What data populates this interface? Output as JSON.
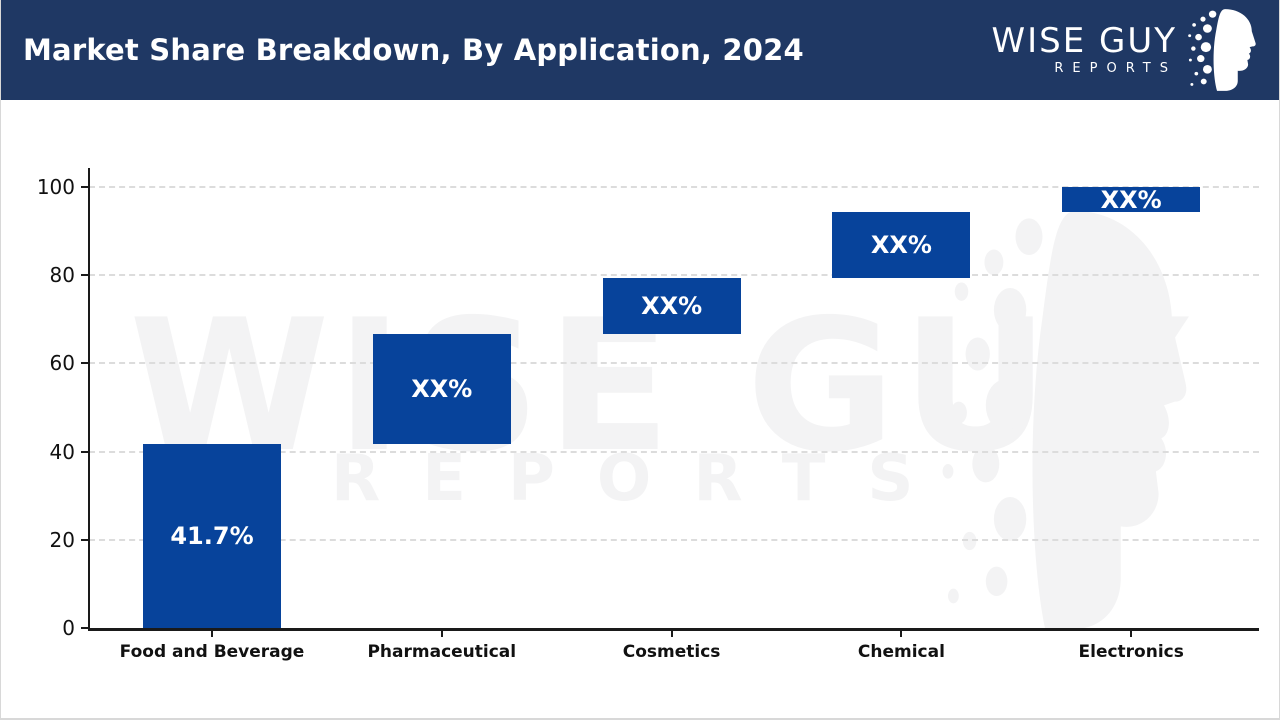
{
  "header": {
    "title": "Market Share Breakdown, By Application, 2024",
    "logo": {
      "line1": "WISE GUY",
      "line2": "REPORTS"
    }
  },
  "watermark": {
    "line1": "WISE GUY",
    "line2": "REPORTS"
  },
  "chart_data": {
    "type": "bar",
    "subtype": "waterfall",
    "title": "Market Share Breakdown, By Application, 2024",
    "categories": [
      "Food and Beverage",
      "Pharmaceutical",
      "Cosmetics",
      "Chemical",
      "Electronics"
    ],
    "bars": [
      {
        "category": "Food and Beverage",
        "start": 0,
        "end": 41.7,
        "size_pct": 41.7,
        "label": "41.7%"
      },
      {
        "category": "Pharmaceutical",
        "start": 41.7,
        "end": 66.7,
        "size_pct": 25.0,
        "label": "XX%"
      },
      {
        "category": "Cosmetics",
        "start": 66.7,
        "end": 79.3,
        "size_pct": 12.6,
        "label": "XX%"
      },
      {
        "category": "Chemical",
        "start": 79.3,
        "end": 94.3,
        "size_pct": 15.0,
        "label": "XX%"
      },
      {
        "category": "Electronics",
        "start": 94.3,
        "end": 100,
        "size_pct": 5.7,
        "label": "XX%"
      }
    ],
    "xlabel": "",
    "ylabel": "",
    "ylim": [
      0,
      100
    ],
    "yticks": [
      0,
      20,
      40,
      60,
      80,
      100
    ],
    "grid": "horizontal-dashed",
    "legend": "none",
    "bar_color": "#07439b",
    "bar_label_color": "#ffffff"
  },
  "colors": {
    "header_bg": "#1f3864",
    "bar": "#07439b",
    "grid": "#dcdcdc",
    "axis": "#1a1a1a",
    "tick_text": "#111111",
    "watermark": "#f3f3f4",
    "page_border": "#d8d8d8"
  }
}
